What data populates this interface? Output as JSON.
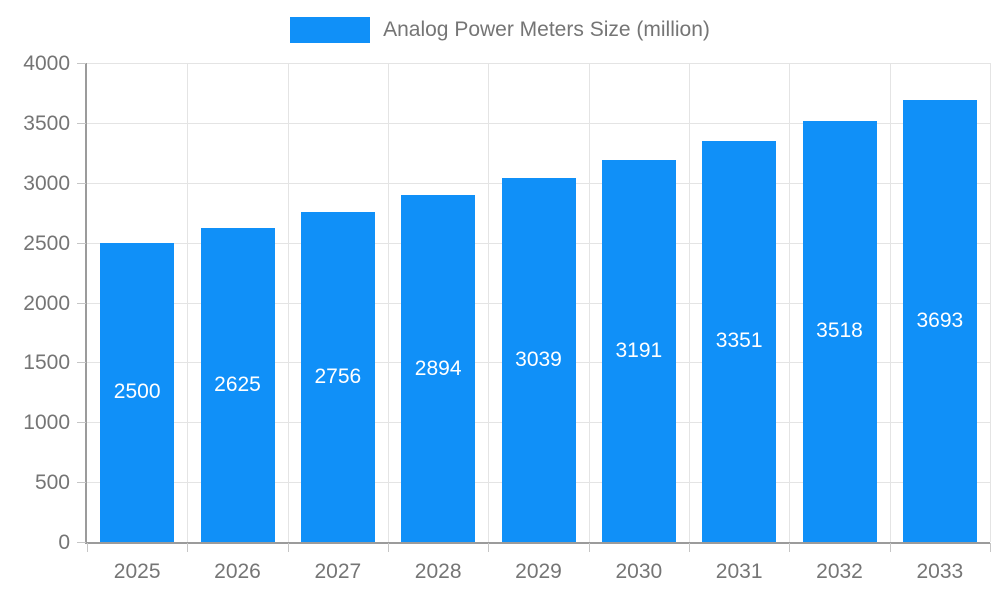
{
  "chart_data": {
    "type": "bar",
    "title": "Analog Power Meters Size (million)",
    "legend_position": "top",
    "categories": [
      "2025",
      "2026",
      "2027",
      "2028",
      "2029",
      "2030",
      "2031",
      "2032",
      "2033"
    ],
    "series": [
      {
        "name": "Analog Power Meters Size (million)",
        "values": [
          2500,
          2625,
          2756,
          2894,
          3039,
          3191,
          3351,
          3518,
          3693
        ]
      }
    ],
    "value_labels_shown": true,
    "xlabel": "",
    "ylabel": "",
    "ylim": [
      0,
      4000
    ],
    "yticks": [
      0,
      500,
      1000,
      1500,
      2000,
      2500,
      3000,
      3500,
      4000
    ],
    "grid": true,
    "colors": {
      "bar": "#1090f8",
      "bar_value_text": "#ffffff",
      "axis_text": "#757575",
      "legend_text": "#757575",
      "gridline": "#e4e4e4",
      "axis_line": "#9b9b9b",
      "tick": "#c6c6c6",
      "background": "#ffffff"
    }
  }
}
